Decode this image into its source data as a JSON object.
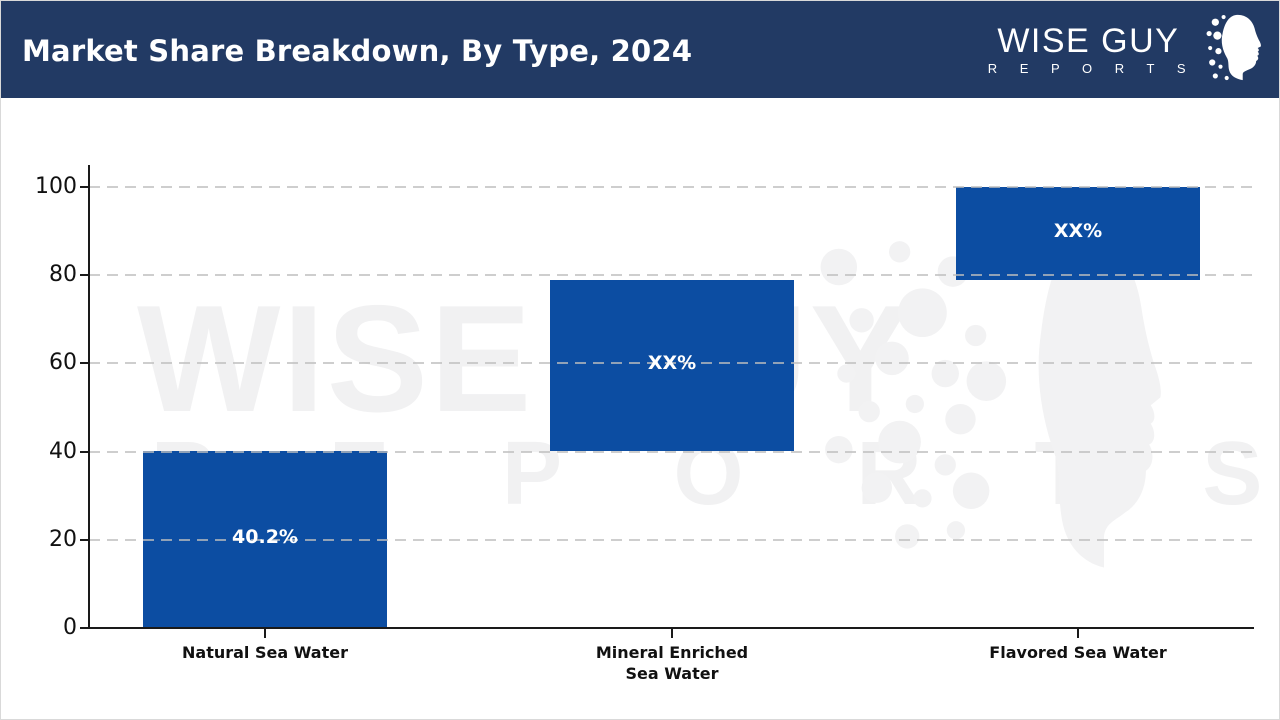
{
  "header": {
    "title": "Market Share Breakdown, By Type, 2024",
    "logo": {
      "line1": "WISE GUY",
      "line2": "R E P O R T S"
    }
  },
  "watermark": {
    "line1": "WISE GUY",
    "line2": "R E P O R T S"
  },
  "chart_data": {
    "type": "bar",
    "variant": "stacked-waterfall",
    "title": "Market Share Breakdown, By Type, 2024",
    "categories": [
      [
        "Natural Sea Water"
      ],
      [
        "Mineral Enriched",
        "Sea Water"
      ],
      [
        "Flavored Sea Water"
      ]
    ],
    "segments": [
      {
        "category": "Natural Sea Water",
        "from": 0,
        "to": 40.2,
        "label": "40.2%"
      },
      {
        "category": "Mineral Enriched Sea Water",
        "from": 40.2,
        "to": 79,
        "label": "XX%"
      },
      {
        "category": "Flavored Sea Water",
        "from": 79,
        "to": 100,
        "label": "XX%"
      }
    ],
    "ylim": [
      0,
      100
    ],
    "yticks": [
      0,
      20,
      40,
      60,
      80,
      100
    ],
    "xlabel": "",
    "ylabel": "",
    "legend": "none",
    "grid": {
      "axis": "y",
      "style": "dashed",
      "color": "#d6d6d6"
    },
    "bar_color": "#0c4da2",
    "bar_label_color": "#ffffff"
  },
  "colors": {
    "header_bg": "#223a64",
    "title_text": "#ffffff",
    "bar": "#0c4da2",
    "axis": "#1a1a1a",
    "grid": "#d6d6d6",
    "watermark": "#f1f1f2",
    "page_border": "#d9d9d9",
    "background": "#ffffff"
  }
}
